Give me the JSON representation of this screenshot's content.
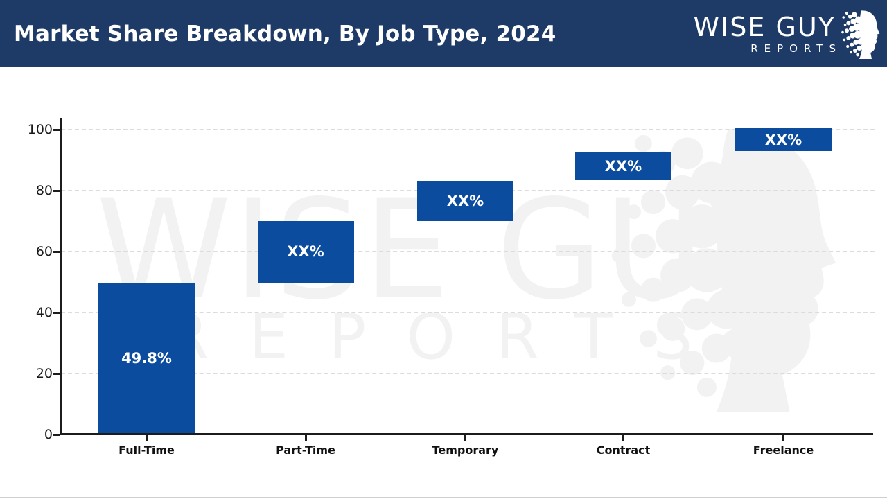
{
  "header": {
    "title": "Market Share Breakdown, By Job Type, 2024",
    "logo": {
      "line1": "WISE GUY",
      "line2": "REPORTS"
    }
  },
  "watermark": {
    "line1": "WISE GUY",
    "line2": "REPORTS"
  },
  "colors": {
    "header_bg": "#1e3a67",
    "bar": "#0c4c9f",
    "bar_label": "#ffffff",
    "grid": "#dcdcdc",
    "axis": "#1c1c1c",
    "watermark": "#f2f2f2"
  },
  "chart_data": {
    "type": "bar",
    "subtype": "waterfall",
    "title": "Market Share Breakdown, By Job Type, 2024",
    "xlabel": "",
    "ylabel": "",
    "categories": [
      "Full-Time",
      "Part-Time",
      "Temporary",
      "Contract",
      "Freelance"
    ],
    "segments": [
      {
        "category": "Full-Time",
        "start": 0,
        "end": 49.8,
        "value": 49.8,
        "label": "49.8%"
      },
      {
        "category": "Part-Time",
        "start": 49.8,
        "end": 70.0,
        "value": 20.2,
        "label": "XX%"
      },
      {
        "category": "Temporary",
        "start": 70.0,
        "end": 83.2,
        "value": 13.2,
        "label": "XX%"
      },
      {
        "category": "Contract",
        "start": 83.6,
        "end": 92.5,
        "value": 8.9,
        "label": "XX%"
      },
      {
        "category": "Freelance",
        "start": 93.0,
        "end": 100.4,
        "value": 7.4,
        "label": "XX%"
      }
    ],
    "yticks": [
      0,
      20,
      40,
      60,
      80,
      100
    ],
    "ylim": [
      0,
      104
    ],
    "grid": "horizontal-dashed",
    "legend": "none",
    "bar_color": "#0c4c9f",
    "value_labels_inside_bars": true
  }
}
